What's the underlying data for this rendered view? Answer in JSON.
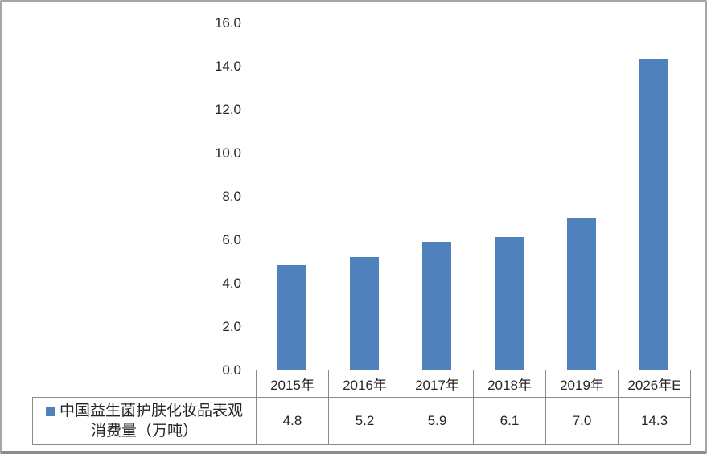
{
  "chart_data": {
    "type": "bar",
    "title": "",
    "xlabel": "",
    "ylabel": "",
    "categories": [
      "2015年",
      "2016年",
      "2017年",
      "2018年",
      "2019年",
      "2026年E"
    ],
    "values": [
      4.8,
      5.2,
      5.9,
      6.1,
      7.0,
      14.3
    ],
    "value_labels": [
      "4.8",
      "5.2",
      "5.9",
      "6.1",
      "7.0",
      "14.3"
    ],
    "series": [
      {
        "name": "中国益生菌护肤化妆品表观消费量（万吨）",
        "values": [
          4.8,
          5.2,
          5.9,
          6.1,
          7.0,
          14.3
        ]
      }
    ],
    "yticks": [
      "16.0",
      "14.0",
      "12.0",
      "10.0",
      "8.0",
      "6.0",
      "4.0",
      "2.0",
      "0.0"
    ],
    "ylim": [
      0,
      16
    ],
    "grid": "off",
    "legend_position": "bottom-table-left",
    "bar_color": "#4f81bd"
  },
  "legend": {
    "marker": "blue-square-icon",
    "line1": "中国益生菌护肤化妆品表观",
    "line2": "消费量（万吨）",
    "full_label": "中国益生菌护肤化妆品表观消费量（万吨）"
  },
  "colors": {
    "bar": "#4f81bd",
    "line": "#8a8a8a",
    "text": "#262626",
    "frame_border": "#a6a6a6"
  }
}
